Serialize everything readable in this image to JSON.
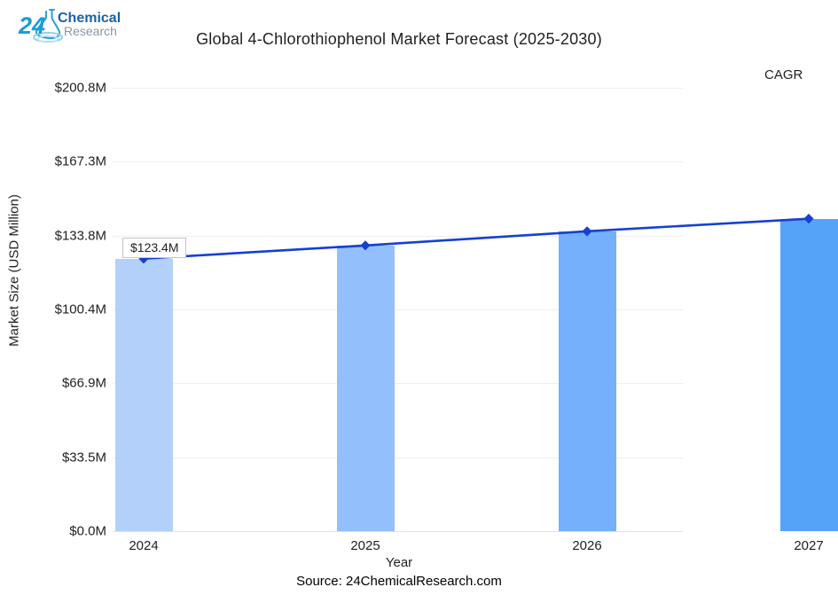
{
  "logo": {
    "number": "24",
    "name_line1": "Chemical",
    "name_line2": "Research",
    "number_color": "#1a9cd8",
    "name_color": "#1961a8",
    "sub_color": "#8b95a0"
  },
  "header": {
    "title": "Global 4-Chlorothiophenol Market Forecast (2025-2030)",
    "cagr_label": "CAGR"
  },
  "tooltip": {
    "text": "$123.4M"
  },
  "footer": {
    "source": "Source: 24ChemicalResearch.com"
  },
  "chart_data": {
    "type": "bar",
    "title": "Global 4-Chlorothiophenol Market Forecast (2025-2030)",
    "xlabel": "Year",
    "ylabel": "Market Size (USD Million)",
    "categories": [
      "2024",
      "2025",
      "2026",
      "2027"
    ],
    "values": [
      123.4,
      129.4,
      135.8,
      141.5
    ],
    "values_note": "2024 labeled $123.4M on chart; 2025-2027 estimated from bar heights; 2027 bar and label only partially visible at right crop edge",
    "data_label": "$123.4M",
    "y_ticks": [
      "$0.0M",
      "$33.5M",
      "$66.9M",
      "$100.4M",
      "$133.8M",
      "$167.3M",
      "$200.8M"
    ],
    "y_tick_values": [
      0,
      33.5,
      66.9,
      100.4,
      133.8,
      167.3,
      200.8
    ],
    "ylim": [
      0,
      200.8
    ],
    "grid": true,
    "overlay_line": true,
    "bar_colors": [
      "#b3d0fa",
      "#93bffc",
      "#74b0fc",
      "#55a3f8"
    ],
    "line_color": "#1640d0",
    "marker": "diamond"
  }
}
